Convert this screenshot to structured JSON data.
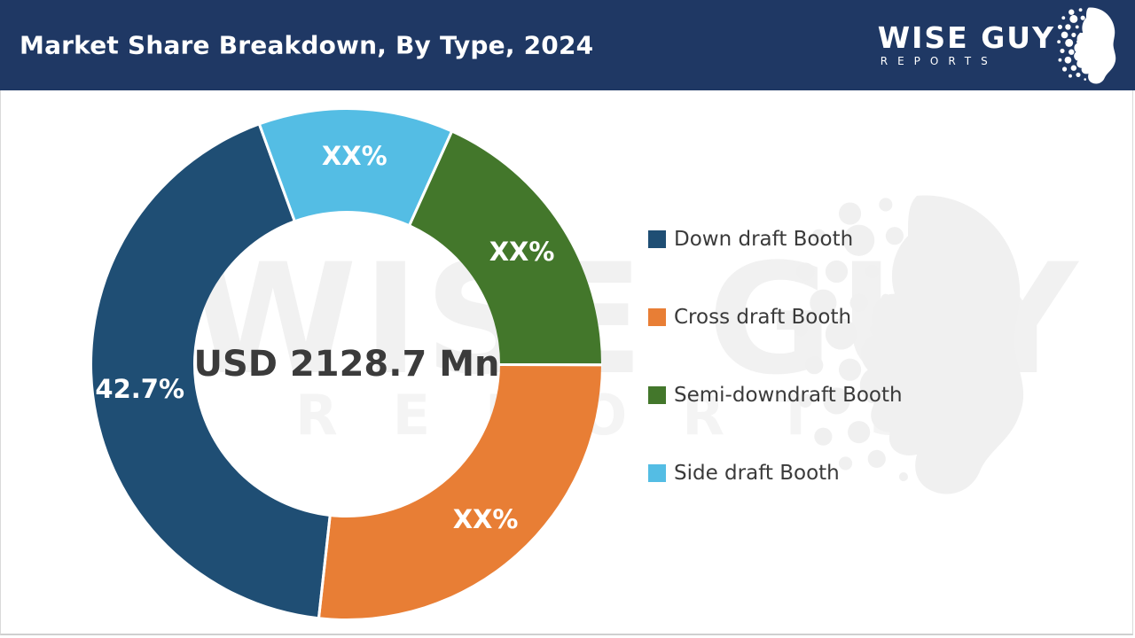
{
  "header": {
    "title": "Market Share Breakdown, By Type, 2024",
    "logo": {
      "line1": "WISE GUY",
      "line2": "REPORTS"
    }
  },
  "watermark": {
    "line1": "WISE GUY",
    "line2": "REPORTS"
  },
  "chart_data": {
    "type": "pie",
    "subtype": "donut",
    "title": "Market Share Breakdown, By Type, 2024",
    "center_label": "USD 2128.7 Mn",
    "legend_position": "right",
    "start_angle_deg": -20,
    "direction": "counterclockwise",
    "slices": [
      {
        "name": "Down draft Booth",
        "value_pct": 42.7,
        "label": "42.7%",
        "color": "#1F4E74"
      },
      {
        "name": "Cross draft Booth",
        "value_pct": 26.7,
        "label": "XX%",
        "color": "#E87E35"
      },
      {
        "name": "Semi-downdraft Booth",
        "value_pct": 18.3,
        "label": "XX%",
        "color": "#43772B"
      },
      {
        "name": "Side draft Booth",
        "value_pct": 12.3,
        "label": "XX%",
        "color": "#54BDE4"
      }
    ]
  },
  "colors": {
    "header_bg": "#1F3864",
    "title_text": "#FFFFFF",
    "value_text": "#3B3B3B",
    "watermark": "#F1F1F1",
    "frame_border": "#D9D9D9"
  }
}
